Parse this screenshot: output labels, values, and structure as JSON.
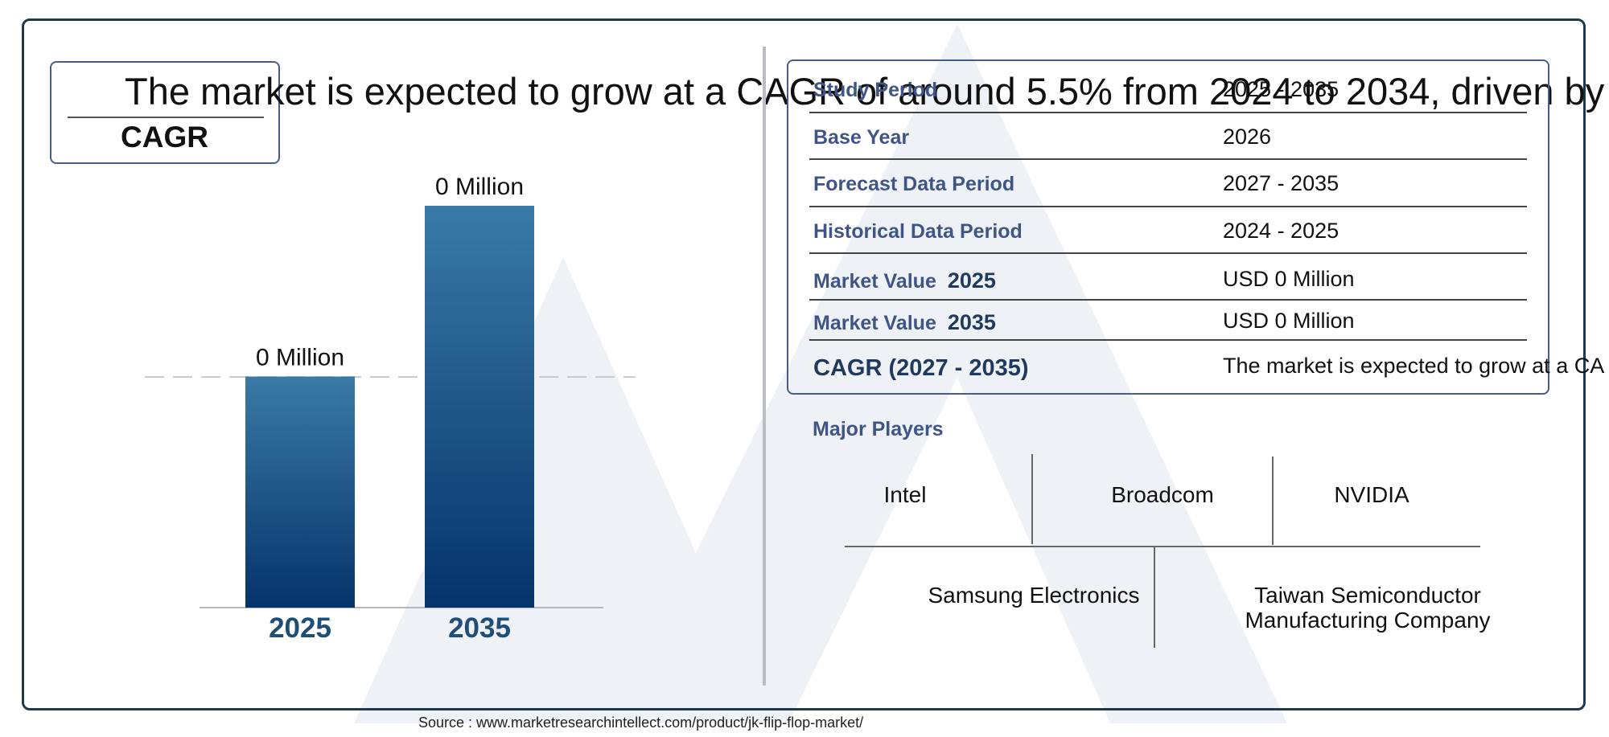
{
  "cagr_box": {
    "headline": "The market is expected to grow at a CAGR of around 5.5% from 2024 to 2034, driven by i",
    "label": "CAGR"
  },
  "chart_data": {
    "type": "bar",
    "categories": [
      "2025",
      "2035"
    ],
    "values": [
      0,
      0
    ],
    "data_labels": [
      "0 Million",
      "0 Million"
    ],
    "visual_level_fraction": [
      0.575,
      1.0
    ],
    "colors": {
      "bar_top": "#3a7aa6",
      "bar_bottom": "#05336a",
      "category_text": "#1f4e79"
    }
  },
  "table": {
    "rows": [
      {
        "label": "Study Period",
        "year": "",
        "value": "2025 - 2035"
      },
      {
        "label": "Base Year",
        "year": "",
        "value": "2026"
      },
      {
        "label": "Forecast Data Period",
        "year": "",
        "value": "2027 - 2035"
      },
      {
        "label": "Historical Data Period",
        "year": "",
        "value": "2024 - 2025"
      },
      {
        "label": "Market Value",
        "year": "2025",
        "value": "USD 0 Million"
      },
      {
        "label": "Market Value",
        "year": "2035",
        "value": "USD 0 Million"
      }
    ],
    "cagr_label": "CAGR (2027 - 2035)",
    "cagr_value": "The market is expected to grow at a CA"
  },
  "players": {
    "title": "Major Players",
    "top": [
      "Intel",
      "Broadcom",
      "NVIDIA"
    ],
    "bottom": [
      "Samsung Electronics",
      "Taiwan Semiconductor Manufacturing Company"
    ]
  },
  "source": "Source : www.marketresearchintellect.com/product/jk-flip-flop-market/"
}
